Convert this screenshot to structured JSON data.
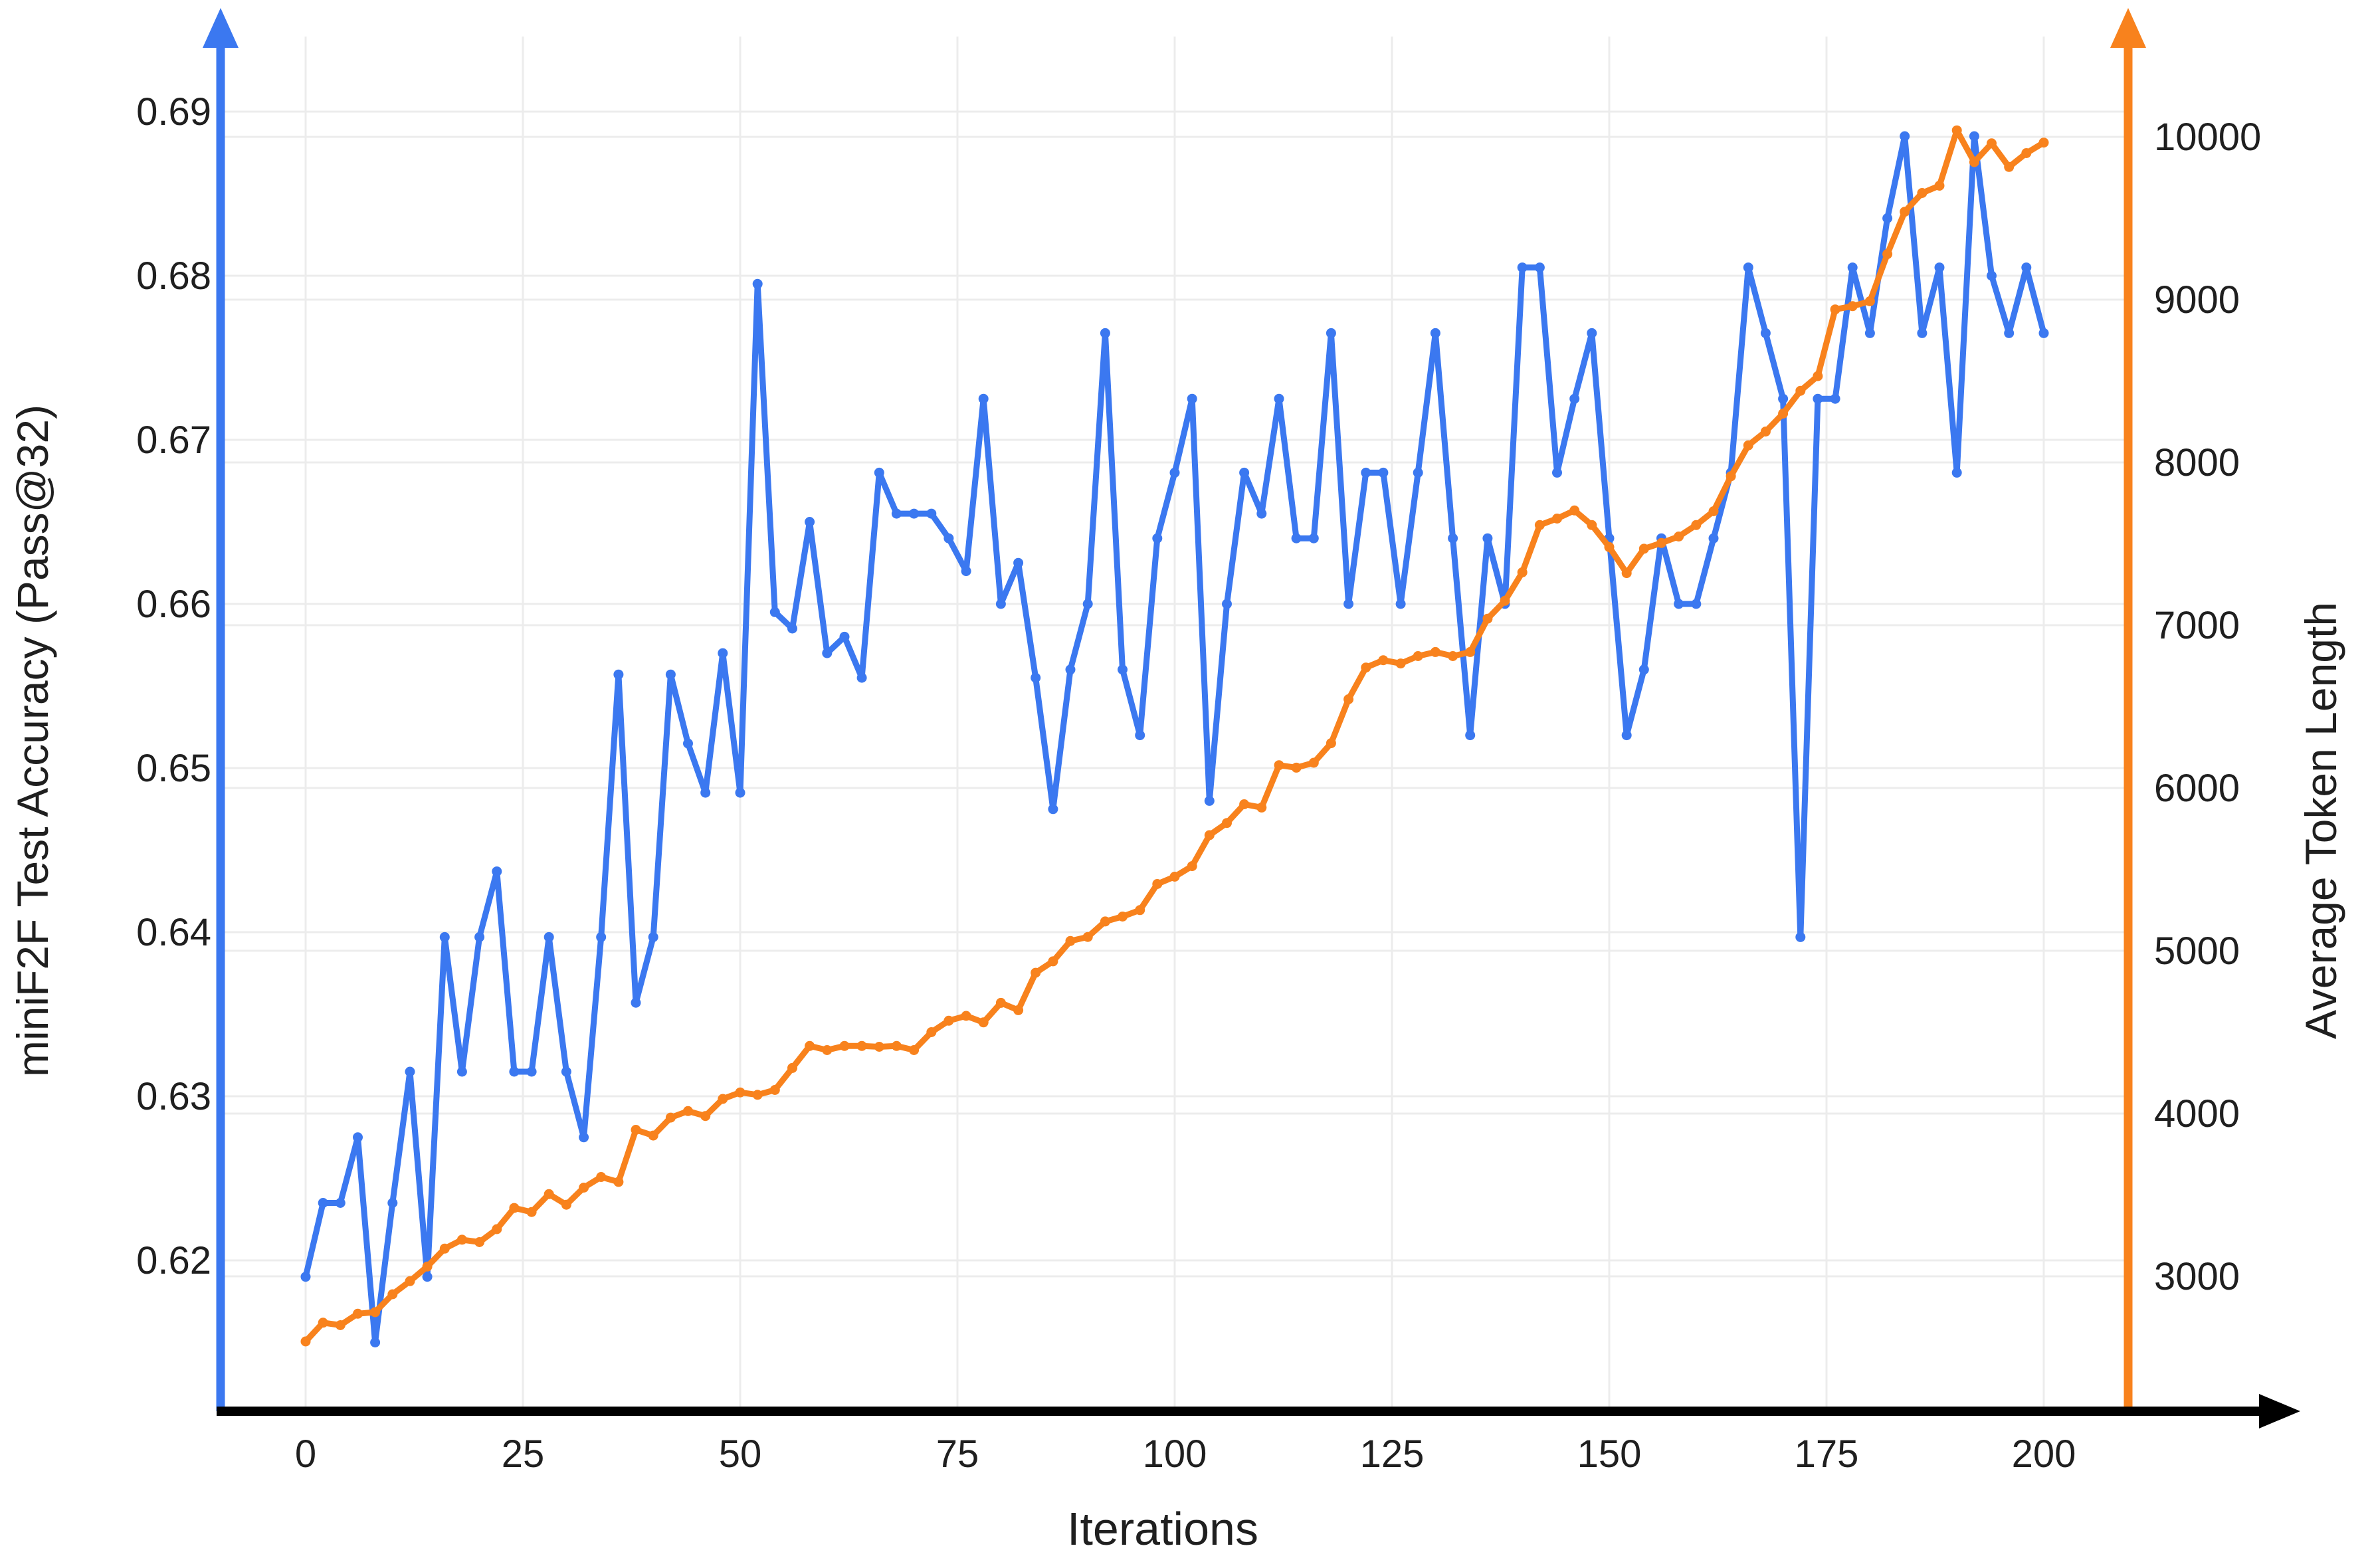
{
  "chart_data": {
    "type": "line",
    "title": "",
    "xlabel": "Iterations",
    "x_range": [
      0,
      200
    ],
    "x_ticks": [
      0,
      25,
      50,
      75,
      100,
      125,
      150,
      175,
      200
    ],
    "grid": true,
    "legend_position": "none",
    "left_axis": {
      "label": "miniF2F Test Accuracy (Pass@32)",
      "ticks": [
        0.62,
        0.63,
        0.64,
        0.65,
        0.66,
        0.67,
        0.68,
        0.69
      ],
      "range": [
        0.6108,
        0.6946
      ],
      "color": "#3B78F0"
    },
    "right_axis": {
      "label": "Average Token Length",
      "ticks": [
        3000,
        4000,
        5000,
        6000,
        7000,
        8000,
        9000,
        10000
      ],
      "range": [
        2255,
        10800
      ],
      "color": "#F8821D"
    },
    "x": [
      0,
      2,
      4,
      6,
      8,
      10,
      12,
      14,
      16,
      18,
      20,
      22,
      24,
      26,
      28,
      30,
      32,
      34,
      36,
      38,
      40,
      42,
      44,
      46,
      48,
      50,
      52,
      54,
      56,
      58,
      60,
      62,
      64,
      66,
      68,
      70,
      72,
      74,
      76,
      78,
      80,
      82,
      84,
      86,
      88,
      90,
      92,
      94,
      96,
      98,
      100,
      102,
      104,
      106,
      108,
      110,
      112,
      114,
      116,
      118,
      120,
      122,
      124,
      126,
      128,
      130,
      132,
      134,
      136,
      138,
      140,
      142,
      144,
      146,
      148,
      150,
      152,
      154,
      156,
      158,
      160,
      162,
      164,
      166,
      168,
      170,
      172,
      174,
      176,
      178,
      180,
      182,
      184,
      186,
      188,
      190,
      192,
      194,
      196,
      198,
      200
    ],
    "series": [
      {
        "name": "miniF2F Test Accuracy (Pass@32)",
        "axis": "left",
        "color": "#3B78F0",
        "marker": "circle",
        "values": [
          0.619,
          0.6235,
          0.6235,
          0.6275,
          0.615,
          0.6235,
          0.6315,
          0.619,
          0.6397,
          0.6315,
          0.6397,
          0.6437,
          0.6315,
          0.6315,
          0.6397,
          0.6315,
          0.6275,
          0.6397,
          0.6557,
          0.6357,
          0.6397,
          0.6557,
          0.6515,
          0.6485,
          0.657,
          0.6485,
          0.6795,
          0.6595,
          0.6585,
          0.665,
          0.657,
          0.658,
          0.6555,
          0.668,
          0.6655,
          0.6655,
          0.6655,
          0.664,
          0.662,
          0.6725,
          0.66,
          0.6625,
          0.6555,
          0.6475,
          0.656,
          0.66,
          0.6765,
          0.656,
          0.652,
          0.664,
          0.668,
          0.6725,
          0.648,
          0.66,
          0.668,
          0.6655,
          0.6725,
          0.664,
          0.664,
          0.6765,
          0.66,
          0.668,
          0.668,
          0.66,
          0.668,
          0.6765,
          0.664,
          0.652,
          0.664,
          0.66,
          0.6805,
          0.6805,
          0.668,
          0.6725,
          0.6765,
          0.664,
          0.652,
          0.656,
          0.664,
          0.66,
          0.66,
          0.664,
          0.668,
          0.6805,
          0.6765,
          0.6725,
          0.6397,
          0.6725,
          0.6725,
          0.6805,
          0.6765,
          0.6835,
          0.6885,
          0.6765,
          0.6805,
          0.668,
          0.6885,
          0.68,
          0.6765,
          0.6805,
          0.6765
        ]
      },
      {
        "name": "Average Token Length",
        "axis": "right",
        "color": "#F8821D",
        "marker": "circle",
        "values": [
          2600,
          2715,
          2700,
          2770,
          2780,
          2890,
          2970,
          3060,
          3170,
          3225,
          3210,
          3290,
          3420,
          3395,
          3505,
          3440,
          3545,
          3610,
          3580,
          3900,
          3865,
          3975,
          4015,
          3985,
          4090,
          4130,
          4115,
          4145,
          4280,
          4415,
          4390,
          4415,
          4415,
          4410,
          4415,
          4390,
          4500,
          4570,
          4600,
          4560,
          4680,
          4635,
          4865,
          4935,
          5060,
          5085,
          5180,
          5210,
          5250,
          5410,
          5455,
          5520,
          5710,
          5785,
          5900,
          5880,
          6140,
          6125,
          6155,
          6275,
          6545,
          6740,
          6785,
          6765,
          6810,
          6835,
          6810,
          6835,
          7040,
          7150,
          7325,
          7615,
          7655,
          7705,
          7615,
          7480,
          7320,
          7470,
          7505,
          7545,
          7615,
          7700,
          7915,
          8105,
          8190,
          8300,
          8440,
          8530,
          8940,
          8960,
          8990,
          9280,
          9540,
          9655,
          9700,
          10040,
          9845,
          9960,
          9815,
          9900,
          9965
        ]
      }
    ]
  },
  "colors": {
    "background": "#ffffff",
    "grid": "#ececec",
    "text": "#1f1f1f",
    "x_axis": "#000000",
    "accuracy_blue": "#3B78F0",
    "token_orange": "#F8821D"
  }
}
